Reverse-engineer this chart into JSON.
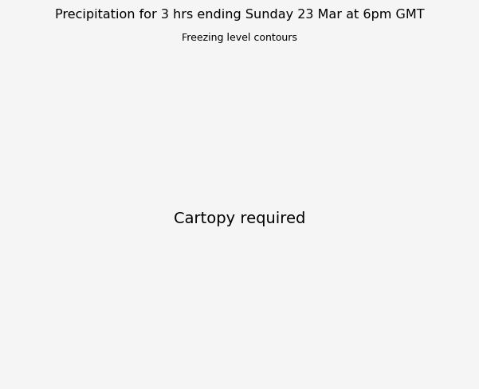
{
  "title": "Precipitation for 3 hrs ending Sunday 23 Mar at 6pm GMT",
  "subtitle": "Freezing level contours",
  "title_fontsize": 11.5,
  "subtitle_fontsize": 9,
  "ocean_color": "#d4d9ec",
  "land_color": "#a09888",
  "land_edge": "#333333",
  "precip_blue": "#b8c4de",
  "precip_blue2": "#c5cfe8",
  "header_bg": "#f5f5f5",
  "contour_color": "#cc0000",
  "fig_width": 6.01,
  "fig_height": 4.88,
  "dpi": 100,
  "map_extent": [
    -28,
    25,
    34,
    65
  ]
}
